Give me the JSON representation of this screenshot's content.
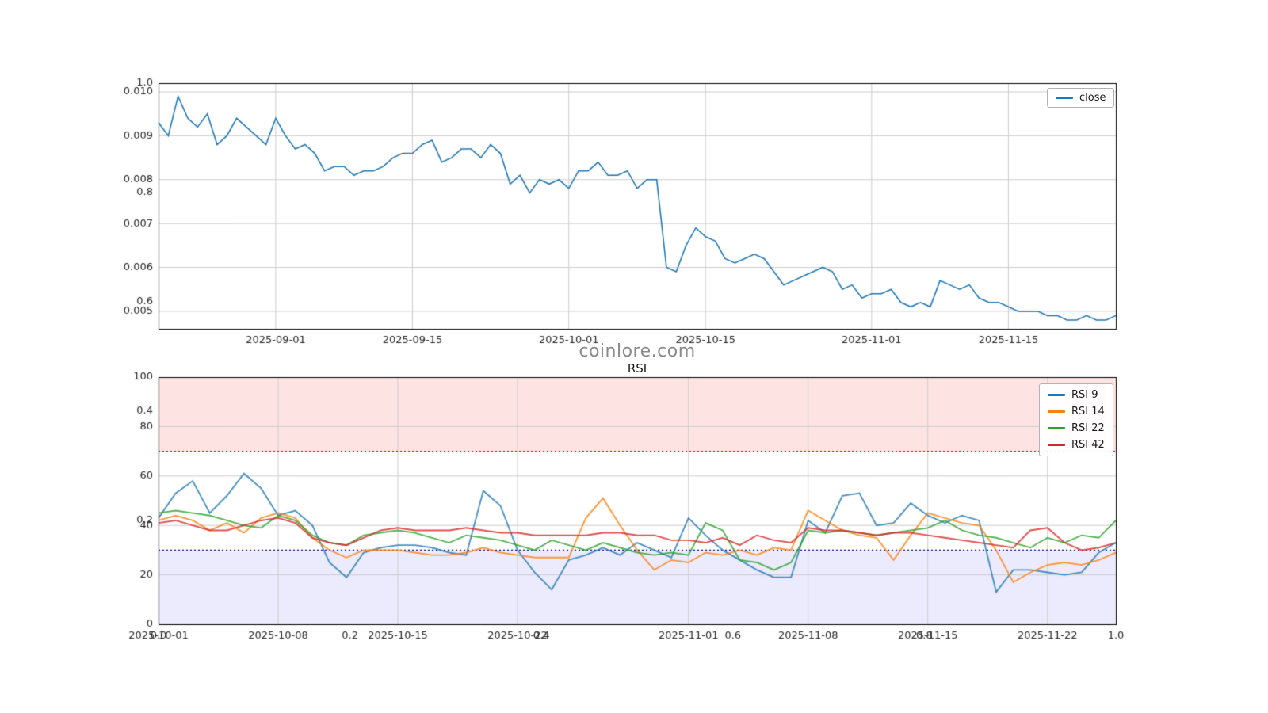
{
  "watermark": "coinlore.com",
  "axis_artifacts": {
    "left_column": [
      "1.0",
      "0.8",
      "0.6",
      "0.4",
      "0.2"
    ],
    "bottom_row": [
      "0.0",
      "0.2",
      "0.4",
      "0.6",
      "0.8",
      "1.0"
    ]
  },
  "chart_data": [
    {
      "type": "line",
      "title": "",
      "x_range": [
        "2025-08-20",
        "2025-11-26"
      ],
      "ylim": [
        0.0046,
        0.0102
      ],
      "grid": true,
      "legend_position": "upper right",
      "y_ticks": [
        {
          "label": "0.005",
          "value": 0.005
        },
        {
          "label": "0.006",
          "value": 0.006
        },
        {
          "label": "0.007",
          "value": 0.007
        },
        {
          "label": "0.008",
          "value": 0.008
        },
        {
          "label": "0.009",
          "value": 0.009
        },
        {
          "label": "0.010",
          "value": 0.01
        }
      ],
      "x_ticks": [
        {
          "label": "2025-09-01",
          "index": 12
        },
        {
          "label": "2025-09-15",
          "index": 26
        },
        {
          "label": "2025-10-01",
          "index": 42
        },
        {
          "label": "2025-10-15",
          "index": 56
        },
        {
          "label": "2025-11-01",
          "index": 73
        },
        {
          "label": "2025-11-15",
          "index": 87
        }
      ],
      "series": [
        {
          "name": "close",
          "color": "#1f77b4",
          "values": [
            0.0093,
            0.009,
            0.0099,
            0.0094,
            0.0092,
            0.0095,
            0.0088,
            0.009,
            0.0094,
            0.0092,
            0.009,
            0.0088,
            0.0094,
            0.009,
            0.0087,
            0.0088,
            0.0086,
            0.0082,
            0.0083,
            0.0083,
            0.0081,
            0.0082,
            0.0082,
            0.0083,
            0.0085,
            0.0086,
            0.0086,
            0.0088,
            0.0089,
            0.0084,
            0.0085,
            0.0087,
            0.0087,
            0.0085,
            0.0088,
            0.0086,
            0.0079,
            0.0081,
            0.0077,
            0.008,
            0.0079,
            0.008,
            0.0078,
            0.0082,
            0.0082,
            0.0084,
            0.0081,
            0.0081,
            0.0082,
            0.0078,
            0.008,
            0.008,
            0.006,
            0.0059,
            0.0065,
            0.0069,
            0.0067,
            0.0066,
            0.0062,
            0.0061,
            0.0062,
            0.0063,
            0.0062,
            0.0059,
            0.0056,
            0.0057,
            0.0058,
            0.0059,
            0.006,
            0.0059,
            0.0055,
            0.0056,
            0.0053,
            0.0054,
            0.0054,
            0.0055,
            0.0052,
            0.0051,
            0.0052,
            0.0051,
            0.0057,
            0.0056,
            0.0055,
            0.0056,
            0.0053,
            0.0052,
            0.0052,
            0.0051,
            0.005,
            0.005,
            0.005,
            0.0049,
            0.0049,
            0.0048,
            0.0048,
            0.0049,
            0.0048,
            0.0048,
            0.0049
          ]
        }
      ]
    },
    {
      "type": "line",
      "title": "RSI",
      "x_range": [
        "2025-10-01",
        "2025-11-26"
      ],
      "ylim": [
        0,
        100
      ],
      "grid": true,
      "legend_position": "upper right",
      "y_ticks": [
        {
          "label": "0",
          "value": 0
        },
        {
          "label": "20",
          "value": 20
        },
        {
          "label": "40",
          "value": 40
        },
        {
          "label": "60",
          "value": 60
        },
        {
          "label": "80",
          "value": 80
        },
        {
          "label": "100",
          "value": 100
        }
      ],
      "x_ticks": [
        {
          "label": "2025-10-01",
          "index": 0
        },
        {
          "label": "2025-10-08",
          "index": 7
        },
        {
          "label": "2025-10-15",
          "index": 14
        },
        {
          "label": "2025-10-22",
          "index": 21
        },
        {
          "label": "2025-11-01",
          "index": 31
        },
        {
          "label": "2025-11-08",
          "index": 38
        },
        {
          "label": "2025-11-15",
          "index": 45
        },
        {
          "label": "2025-11-22",
          "index": 52
        }
      ],
      "overbought": {
        "level": 70,
        "line_color": "#cc0000",
        "band_color": "rgba(244,67,54,0.14)"
      },
      "oversold": {
        "level": 30,
        "line_color": "#00008b",
        "band_color": "rgba(92,92,235,0.12)"
      },
      "series": [
        {
          "name": "RSI 9",
          "color": "#1f77b4",
          "values": [
            43,
            53,
            58,
            45,
            52,
            61,
            55,
            44,
            46,
            40,
            25,
            19,
            29,
            31,
            32,
            32,
            31,
            29,
            28,
            54,
            48,
            30,
            21,
            14,
            26,
            28,
            31,
            28,
            33,
            30,
            27,
            43,
            36,
            30,
            26,
            22,
            19,
            19,
            42,
            37,
            52,
            53,
            40,
            41,
            49,
            44,
            41,
            44,
            42,
            13,
            22,
            22,
            21,
            20,
            21,
            29,
            33
          ]
        },
        {
          "name": "RSI 14",
          "color": "#ff7f0e",
          "values": [
            42,
            44,
            42,
            38,
            41,
            37,
            43,
            45,
            43,
            35,
            30,
            27,
            30,
            30,
            30,
            29,
            28,
            28,
            29,
            31,
            29,
            28,
            27,
            27,
            27,
            43,
            51,
            40,
            30,
            22,
            26,
            25,
            29,
            28,
            30,
            28,
            31,
            30,
            46,
            42,
            38,
            36,
            35,
            26,
            36,
            45,
            43,
            41,
            40,
            30,
            17,
            21,
            24,
            25,
            24,
            26,
            29
          ]
        },
        {
          "name": "RSI 22",
          "color": "#2ca02c",
          "values": [
            45,
            46,
            45,
            44,
            42,
            40,
            39,
            44,
            42,
            36,
            33,
            32,
            36,
            37,
            38,
            37,
            35,
            33,
            36,
            35,
            34,
            32,
            30,
            34,
            32,
            30,
            33,
            31,
            29,
            28,
            29,
            28,
            41,
            38,
            26,
            25,
            22,
            25,
            38,
            37,
            38,
            37,
            36,
            37,
            38,
            39,
            42,
            38,
            36,
            35,
            33,
            31,
            35,
            33,
            36,
            35,
            42
          ]
        },
        {
          "name": "RSI 42",
          "color": "#d62728",
          "values": [
            41,
            42,
            40,
            38,
            38,
            40,
            42,
            43,
            41,
            35,
            33,
            32,
            35,
            38,
            39,
            38,
            38,
            38,
            39,
            38,
            37,
            37,
            36,
            36,
            36,
            36,
            37,
            37,
            36,
            36,
            34,
            34,
            33,
            35,
            32,
            36,
            34,
            33,
            39,
            38,
            38,
            37,
            36,
            37,
            37,
            36,
            35,
            34,
            33,
            32,
            31,
            38,
            39,
            33,
            30,
            31,
            33
          ]
        }
      ]
    }
  ]
}
